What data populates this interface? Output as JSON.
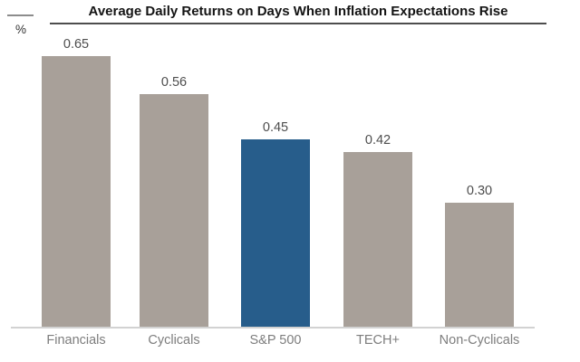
{
  "chart": {
    "title": "Average Daily Returns on Days When Inflation Expectations Rise",
    "y_axis_unit": "%"
  },
  "chart_data": {
    "type": "bar",
    "title": "Average Daily Returns on Days When Inflation Expectations Rise",
    "xlabel": "",
    "ylabel": "%",
    "categories": [
      "Financials",
      "Cyclicals",
      "S&P 500",
      "TECH+",
      "Non-Cyclicals"
    ],
    "values": [
      0.65,
      0.56,
      0.45,
      0.42,
      0.3
    ],
    "value_labels": [
      "0.65",
      "0.56",
      "0.45",
      "0.42",
      "0.30"
    ],
    "bar_colors": [
      "#a8a099",
      "#a8a099",
      "#275d8b",
      "#a8a099",
      "#a8a099"
    ],
    "highlight_category": "S&P 500",
    "colors": {
      "default_bar": "#a8a099",
      "highlight_bar": "#275d8b",
      "value_label_text": "#4d4d4d",
      "category_label_text": "#7d7d7d",
      "title_text": "#141414",
      "axis_line": "#d2d2d2",
      "title_underline": "#4d4d4d"
    },
    "ylim": [
      0,
      0.7
    ],
    "grid": false,
    "legend": false,
    "data_labels_shown": true
  }
}
